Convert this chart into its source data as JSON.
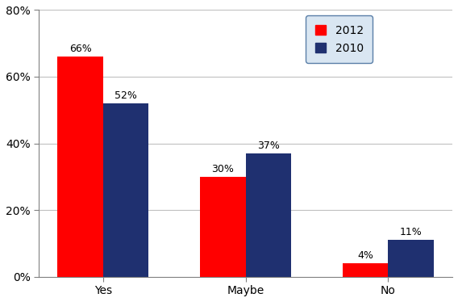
{
  "categories": [
    "Yes",
    "Maybe",
    "No"
  ],
  "values_2012": [
    0.66,
    0.3,
    0.04
  ],
  "values_2010": [
    0.52,
    0.37,
    0.11
  ],
  "labels_2012": [
    "66%",
    "30%",
    "4%"
  ],
  "labels_2010": [
    "52%",
    "37%",
    "11%"
  ],
  "color_2012": "#FF0000",
  "color_2010": "#1F3070",
  "legend_labels": [
    "2012",
    "2010"
  ],
  "ylim": [
    0,
    0.8
  ],
  "yticks": [
    0.0,
    0.2,
    0.4,
    0.6,
    0.8
  ],
  "ytick_labels": [
    "0%",
    "20%",
    "40%",
    "60%",
    "80%"
  ],
  "bar_width": 0.32,
  "legend_facecolor": "#D9E6F2",
  "legend_edgecolor": "#5A7FA8",
  "label_fontsize": 9,
  "tick_fontsize": 10,
  "legend_fontsize": 10,
  "bg_color": "#FFFFFF"
}
